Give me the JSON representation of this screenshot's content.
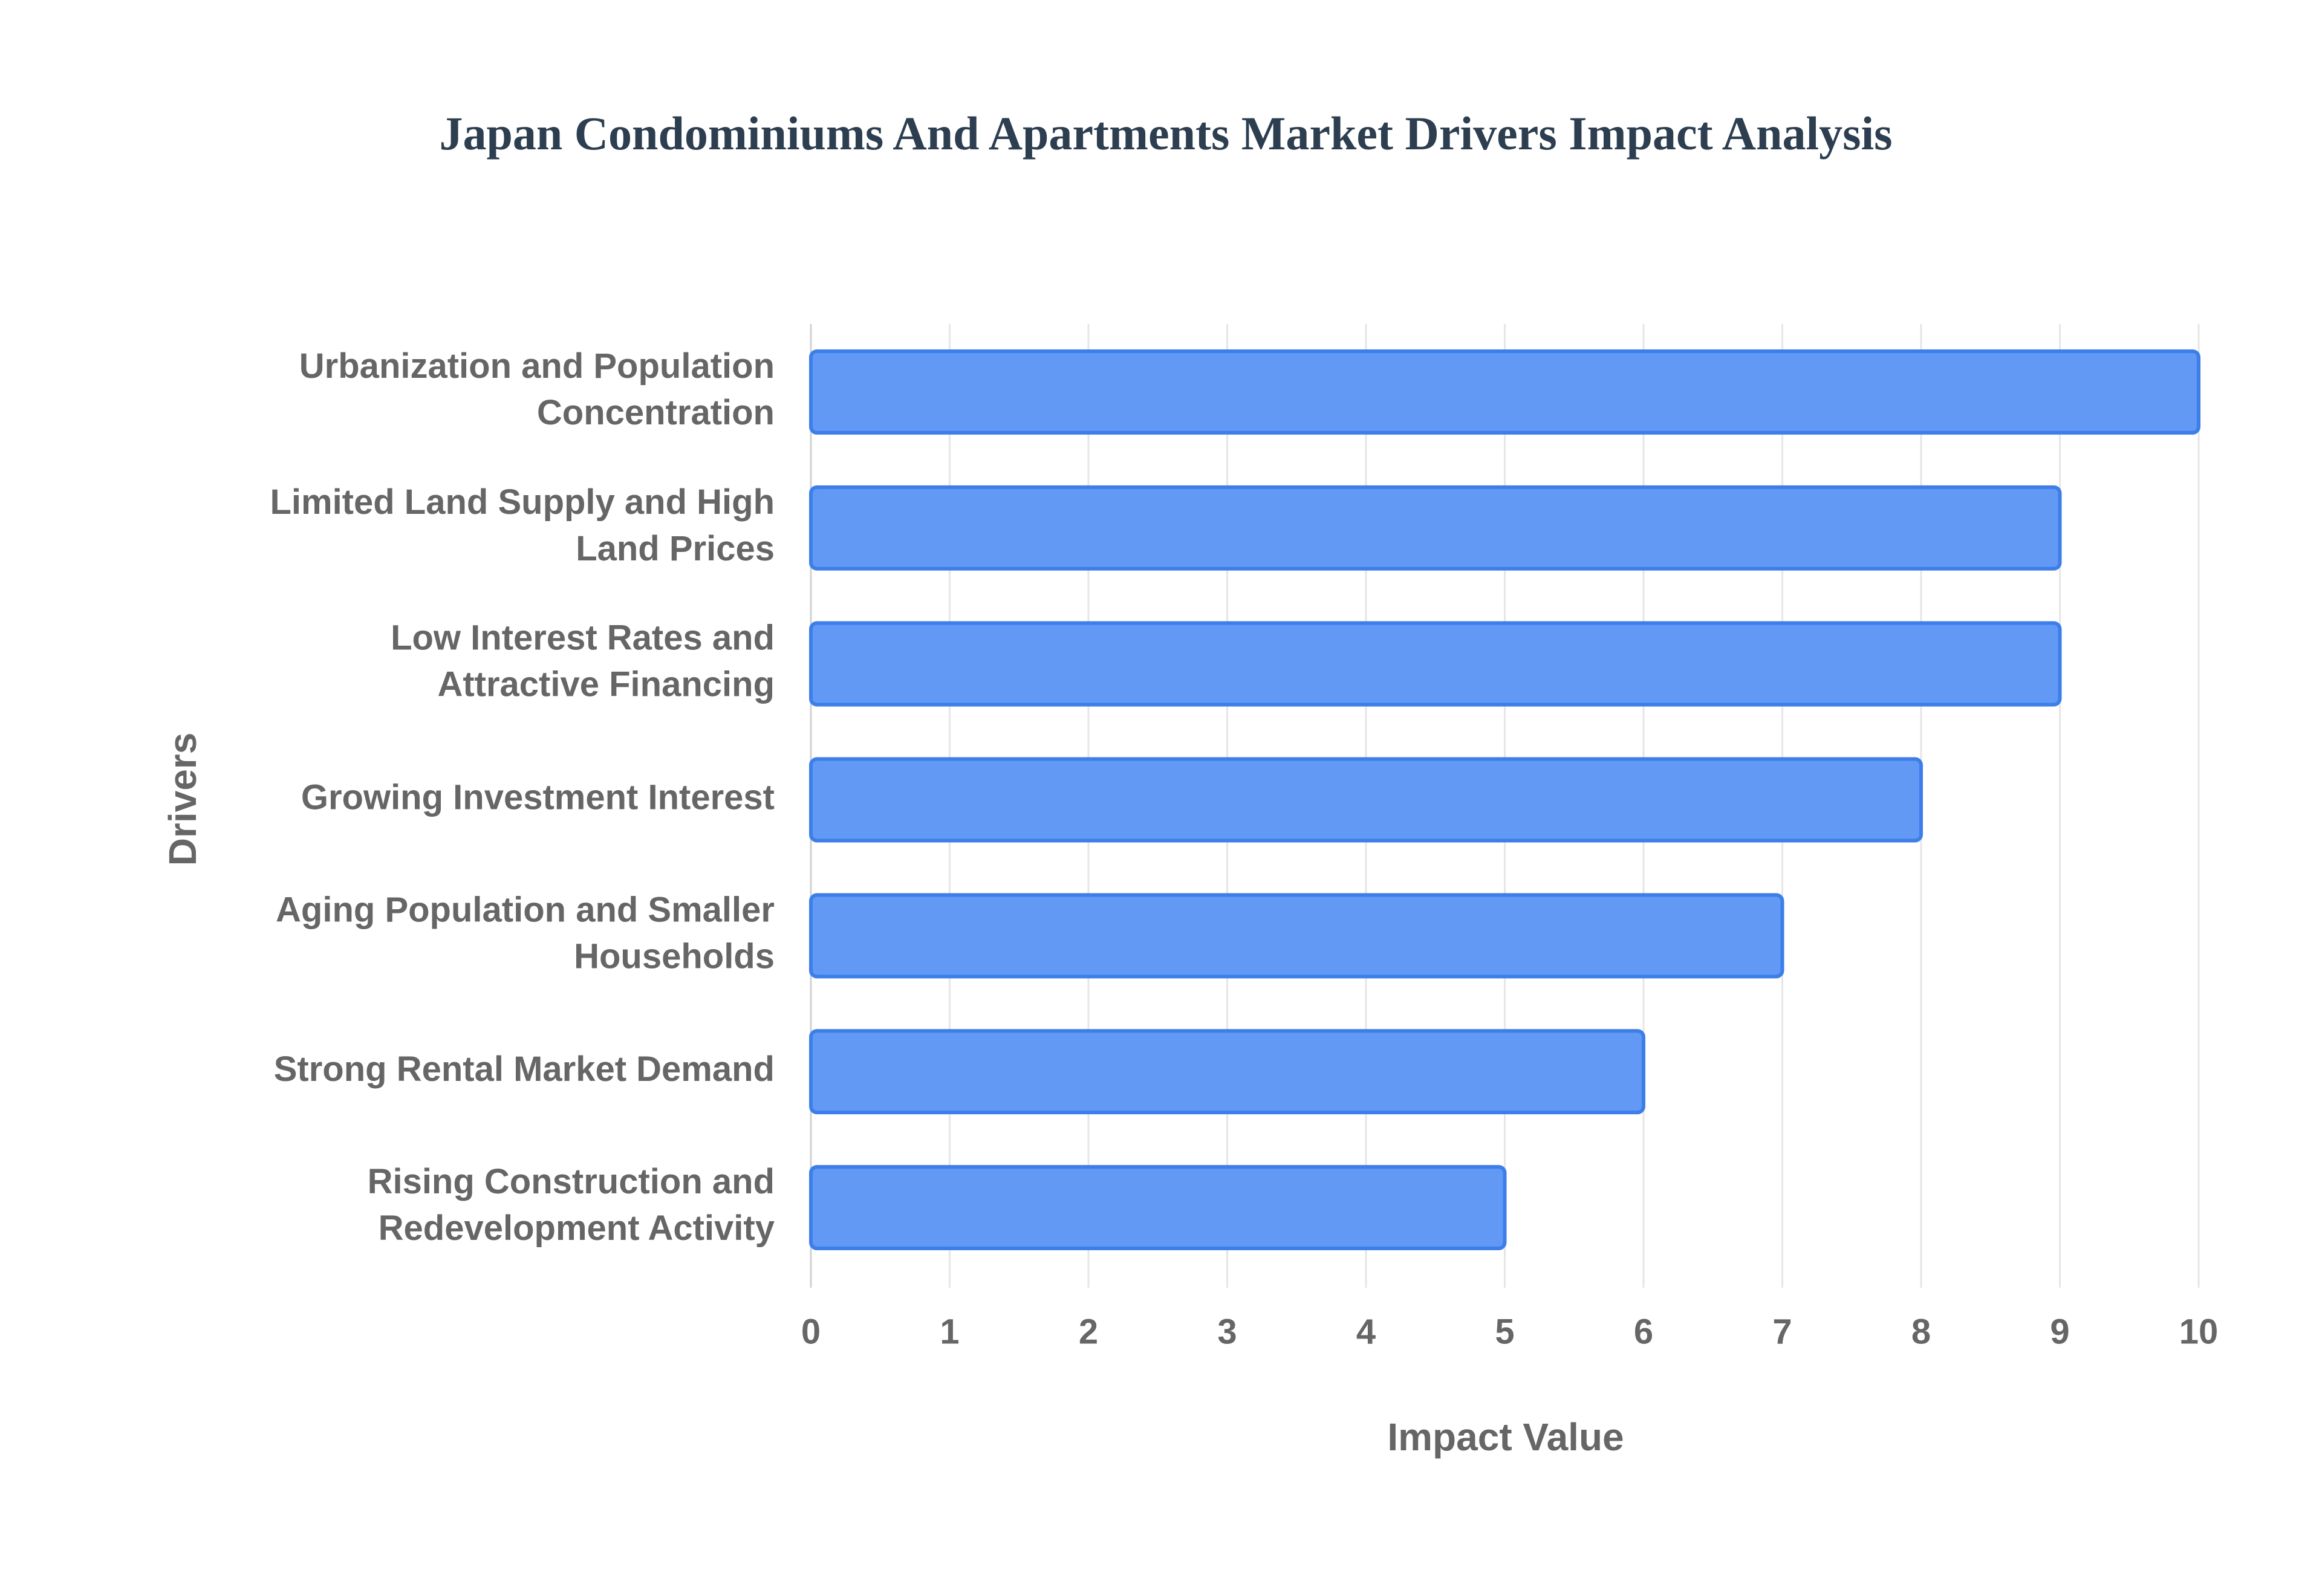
{
  "chart_data": {
    "type": "bar",
    "orientation": "horizontal",
    "title": "Japan Condominiums And Apartments Market Drivers Impact Analysis",
    "x_label": "Impact Value",
    "y_label": "Drivers",
    "categories": [
      "Urbanization and Population Concentration",
      "Limited Land Supply and High Land Prices",
      "Low Interest Rates and Attractive Financing",
      "Growing Investment Interest",
      "Aging Population and Smaller Households",
      "Strong Rental Market Demand",
      "Rising Construction and Redevelopment Activity"
    ],
    "values": [
      10,
      9,
      9,
      8,
      7,
      6,
      5
    ],
    "color": "#6199f5",
    "edge_color": "#3d7ee9",
    "xlim": [
      0,
      10
    ],
    "xticks": [
      0,
      1,
      2,
      3,
      4,
      5,
      6,
      7,
      8,
      9,
      10
    ],
    "grid": true
  }
}
